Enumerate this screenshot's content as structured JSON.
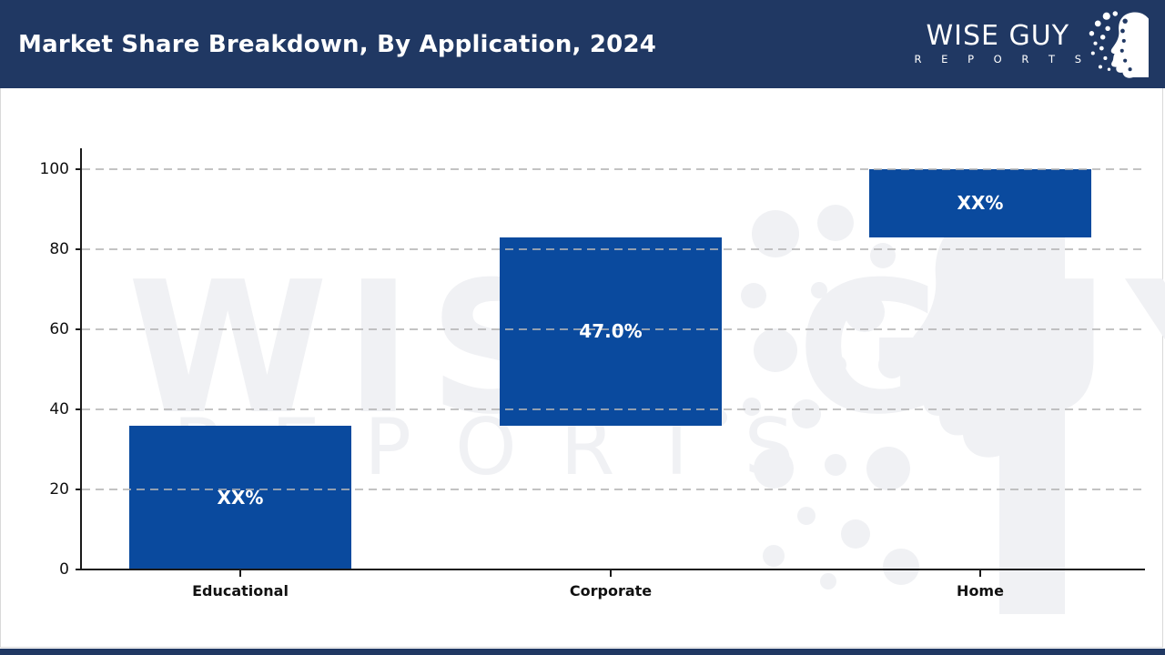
{
  "header": {
    "title": "Market Share Breakdown, By Application, 2024",
    "bg_color": "#203863",
    "logo": {
      "line1": "WISE GUY",
      "line2": "R E P O R T S"
    }
  },
  "watermark": {
    "line1": "WISE GUY",
    "line2": "REPORTS"
  },
  "chart_data": {
    "type": "bar",
    "subtype": "waterfall",
    "title": "Market Share Breakdown, By Application, 2024",
    "categories": [
      "Educational",
      "Corporate",
      "Home"
    ],
    "segments": [
      {
        "category": "Educational",
        "start": 0,
        "end": 36,
        "label": "XX%"
      },
      {
        "category": "Corporate",
        "start": 36,
        "end": 83,
        "label": "47.0%"
      },
      {
        "category": "Home",
        "start": 83,
        "end": 100,
        "label": "XX%"
      }
    ],
    "values": [
      36,
      47,
      17
    ],
    "xlabel": "",
    "ylabel": "",
    "ylim": [
      0,
      100
    ],
    "yticks": [
      0,
      20,
      40,
      60,
      80,
      100
    ],
    "grid": "horizontal-dashed",
    "legend": "none",
    "bar_color": "#0a4a9e",
    "bar_label_color": "#ffffff",
    "grid_color": "#c8c8c8",
    "axis_color": "#1a1a1a"
  }
}
